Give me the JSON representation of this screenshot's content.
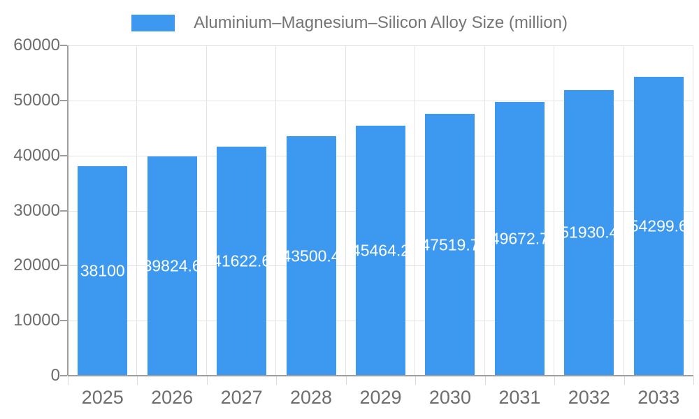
{
  "chart_data": {
    "type": "bar",
    "title": "",
    "legend_label": "Aluminium–Magnesium–Silicon Alloy Size (million)",
    "legend_position": "top",
    "categories": [
      "2025",
      "2026",
      "2027",
      "2028",
      "2029",
      "2030",
      "2031",
      "2032",
      "2033"
    ],
    "series": [
      {
        "name": "Aluminium–Magnesium–Silicon Alloy Size (million)",
        "values": [
          38100,
          39824.6,
          41622.6,
          43500.4,
          45464.2,
          47519.7,
          49672.7,
          51930.4,
          54299.6
        ]
      }
    ],
    "bar_labels": [
      "38100",
      "39824.6",
      "41622.6",
      "43500.4",
      "45464.2",
      "47519.7",
      "49672.7",
      "51930.4",
      "54299.6"
    ],
    "xlabel": "",
    "ylabel": "",
    "ylim": [
      0,
      60000
    ],
    "ytick_step": 10000,
    "yticks": [
      0,
      10000,
      20000,
      30000,
      40000,
      50000,
      60000
    ],
    "grid": true,
    "colors": {
      "bar": "#3D99F0",
      "grid": "#e3e3e3",
      "axis": "#9e9e9e",
      "x_tick": "#d9d9d9",
      "axis_label": "#6e6e6e",
      "legend_text": "#757575",
      "bar_label": "#ffffff"
    }
  }
}
